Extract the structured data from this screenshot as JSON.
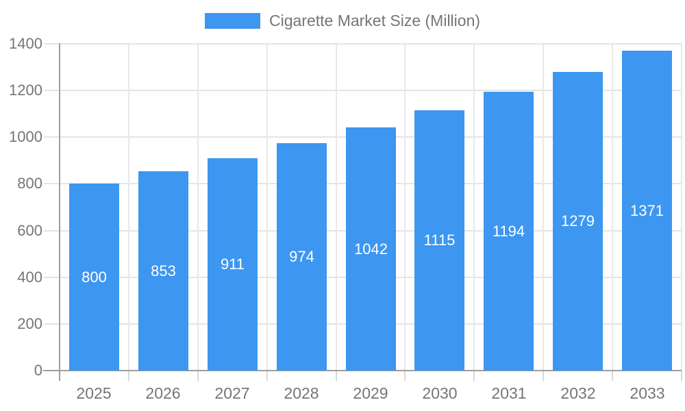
{
  "legend": {
    "label": "Cigarette Market Size (Million)",
    "swatch_color": "#3D96F0"
  },
  "chart_data": {
    "type": "bar",
    "title": "Cigarette Market Size (Million)",
    "categories": [
      "2025",
      "2026",
      "2027",
      "2028",
      "2029",
      "2030",
      "2031",
      "2032",
      "2033"
    ],
    "values": [
      800,
      853,
      911,
      974,
      1042,
      1115,
      1194,
      1279,
      1371
    ],
    "xlabel": "",
    "ylabel": "",
    "ylim": [
      0,
      1400
    ],
    "yticks": [
      0,
      200,
      400,
      600,
      800,
      1000,
      1200,
      1400
    ],
    "grid": true,
    "legend_position": "top",
    "bar_color": "#3D96F0",
    "value_label_color": "#FFFFFF"
  }
}
